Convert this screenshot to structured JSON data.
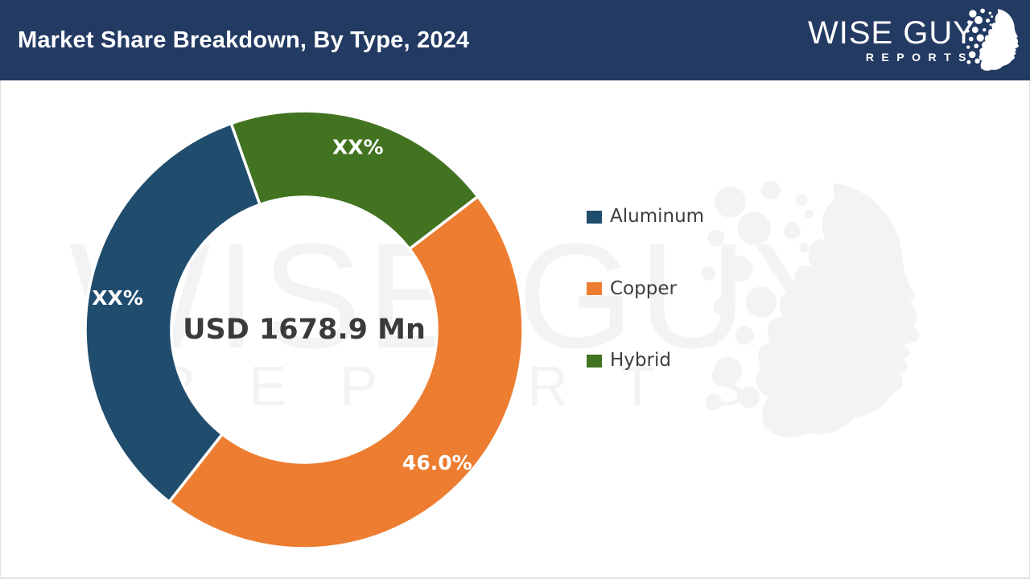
{
  "header": {
    "title": "Market Share Breakdown, By Type, 2024",
    "logo": {
      "line1": "WISE GUY",
      "line2": "REPORTS"
    }
  },
  "watermark": {
    "line1": "WISE GUY",
    "line2": "REPORTS"
  },
  "legend": {
    "items": [
      {
        "label": "Aluminum",
        "color": "#204D6E"
      },
      {
        "label": "Copper",
        "color": "#ED7D31"
      },
      {
        "label": "Hybrid",
        "color": "#427321"
      }
    ]
  },
  "chart_data": {
    "type": "donut",
    "title": "Market Share Breakdown, By Type, 2024",
    "center_label": "USD 1678.9 Mn",
    "direction": "clockwise",
    "start_angle_deg": -19.5,
    "legend_position": "right",
    "segments": [
      {
        "name": "Hybrid",
        "value_pct": 20.0,
        "display_label": "XX%",
        "color": "#427321"
      },
      {
        "name": "Copper",
        "value_pct": 46.0,
        "display_label": "46.0%",
        "color": "#ED7D31"
      },
      {
        "name": "Aluminum",
        "value_pct": 34.0,
        "display_label": "XX%",
        "color": "#204D6E"
      }
    ]
  },
  "colors": {
    "header_bg": "#233A63",
    "title_text": "#FFFFFF",
    "center_text": "#3A3A3A",
    "segment_divider": "#FFFFFF",
    "watermark": "#F3F3F5"
  }
}
